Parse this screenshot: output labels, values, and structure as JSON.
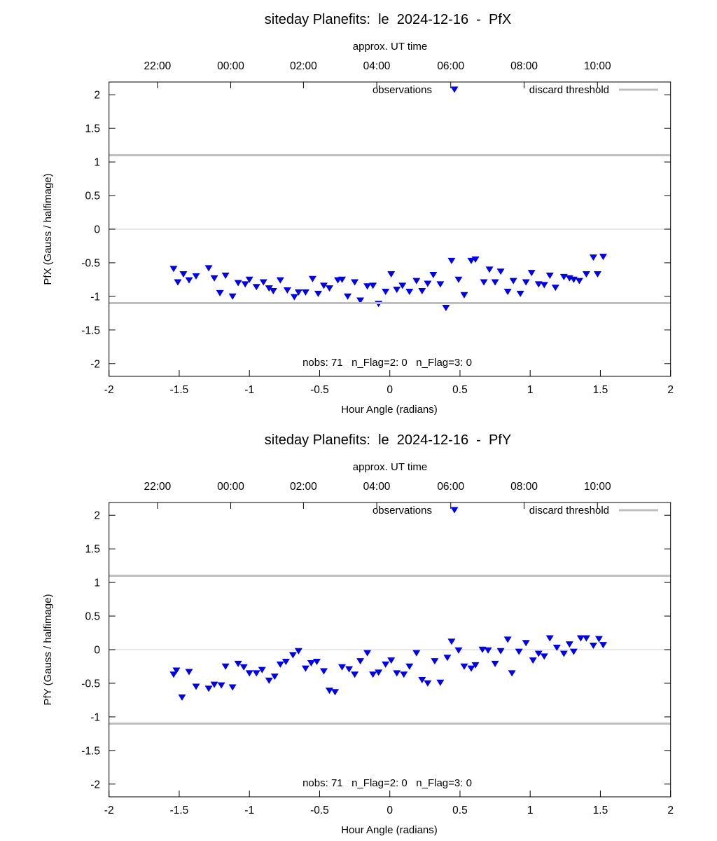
{
  "colors": {
    "marker_blue": "#0000e6",
    "threshold_gray": "#bfbfbf",
    "zero_gray": "#d9d9d9",
    "axis_black": "#000000",
    "background": "#ffffff"
  },
  "chart_data": [
    {
      "type": "scatter",
      "title": "siteday Planefits:  le  2024-12-16  -  PfX",
      "top_axis": {
        "label": "approx. UT time",
        "ticks": [
          {
            "label": "22:00",
            "x": -1.655
          },
          {
            "label": "00:00",
            "x": -1.133
          },
          {
            "label": "02:00",
            "x": -0.615
          },
          {
            "label": "04:00",
            "x": -0.093
          },
          {
            "label": "06:00",
            "x": 0.434
          },
          {
            "label": "08:00",
            "x": 0.957
          },
          {
            "label": "10:00",
            "x": 1.479
          }
        ]
      },
      "xlabel": "Hour Angle (radians)",
      "ylabel": "PfX (Gauss / halfimage)",
      "xlim": [
        -2,
        2
      ],
      "ylim": [
        -2.19,
        2.19
      ],
      "x_ticks": [
        {
          "label": "-2",
          "x": -2
        },
        {
          "label": "-1.5",
          "x": -1.5
        },
        {
          "label": "-1",
          "x": -1
        },
        {
          "label": "-0.5",
          "x": -0.5
        },
        {
          "label": "0",
          "x": 0
        },
        {
          "label": "0.5",
          "x": 0.5
        },
        {
          "label": "1",
          "x": 1
        },
        {
          "label": "1.5",
          "x": 1.5
        },
        {
          "label": "2",
          "x": 2
        }
      ],
      "y_ticks": [
        {
          "label": "2",
          "y": 2
        },
        {
          "label": "1.5",
          "y": 1.5
        },
        {
          "label": "1",
          "y": 1
        },
        {
          "label": "0.5",
          "y": 0.5
        },
        {
          "label": "0",
          "y": 0
        },
        {
          "label": "-0.5",
          "y": -0.5
        },
        {
          "label": "-1",
          "y": -1
        },
        {
          "label": "-1.5",
          "y": -1.5
        },
        {
          "label": "-2",
          "y": -2
        }
      ],
      "zero_line": 0,
      "discard_thresholds": [
        1.1,
        -1.1
      ],
      "legend": {
        "observations_label": "observations",
        "threshold_label": "discard threshold"
      },
      "annotation": "nobs: 71   n_Flag=2: 0   n_Flag=3: 0",
      "series": [
        {
          "name": "observations",
          "marker": "triangle-down",
          "points": [
            [
              -1.54,
              -0.59
            ],
            [
              -1.51,
              -0.79
            ],
            [
              -1.47,
              -0.67
            ],
            [
              -1.43,
              -0.76
            ],
            [
              -1.38,
              -0.7
            ],
            [
              -1.29,
              -0.58
            ],
            [
              -1.25,
              -0.73
            ],
            [
              -1.21,
              -0.95
            ],
            [
              -1.17,
              -0.69
            ],
            [
              -1.12,
              -1.0
            ],
            [
              -1.08,
              -0.8
            ],
            [
              -1.03,
              -0.82
            ],
            [
              -1.0,
              -0.75
            ],
            [
              -0.95,
              -0.86
            ],
            [
              -0.9,
              -0.79
            ],
            [
              -0.86,
              -0.88
            ],
            [
              -0.83,
              -0.92
            ],
            [
              -0.78,
              -0.76
            ],
            [
              -0.73,
              -0.91
            ],
            [
              -0.68,
              -1.01
            ],
            [
              -0.65,
              -0.94
            ],
            [
              -0.6,
              -0.94
            ],
            [
              -0.55,
              -0.74
            ],
            [
              -0.51,
              -0.96
            ],
            [
              -0.47,
              -0.84
            ],
            [
              -0.43,
              -0.88
            ],
            [
              -0.37,
              -0.76
            ],
            [
              -0.34,
              -0.75
            ],
            [
              -0.3,
              -1.0
            ],
            [
              -0.25,
              -0.79
            ],
            [
              -0.21,
              -1.06
            ],
            [
              -0.16,
              -0.85
            ],
            [
              -0.12,
              -0.84
            ],
            [
              -0.08,
              -1.11
            ],
            [
              -0.03,
              -0.93
            ],
            [
              0.01,
              -0.67
            ],
            [
              0.05,
              -0.9
            ],
            [
              0.09,
              -0.84
            ],
            [
              0.14,
              -0.93
            ],
            [
              0.19,
              -0.77
            ],
            [
              0.23,
              -0.92
            ],
            [
              0.27,
              -0.81
            ],
            [
              0.31,
              -0.68
            ],
            [
              0.36,
              -0.82
            ],
            [
              0.4,
              -1.17
            ],
            [
              0.44,
              -0.47
            ],
            [
              0.49,
              -0.75
            ],
            [
              0.53,
              -0.98
            ],
            [
              0.58,
              -0.47
            ],
            [
              0.61,
              -0.45
            ],
            [
              0.67,
              -0.79
            ],
            [
              0.71,
              -0.6
            ],
            [
              0.75,
              -0.79
            ],
            [
              0.79,
              -0.63
            ],
            [
              0.84,
              -0.93
            ],
            [
              0.88,
              -0.77
            ],
            [
              0.93,
              -0.96
            ],
            [
              0.97,
              -0.79
            ],
            [
              1.01,
              -0.65
            ],
            [
              1.06,
              -0.82
            ],
            [
              1.1,
              -0.83
            ],
            [
              1.14,
              -0.69
            ],
            [
              1.18,
              -0.87
            ],
            [
              1.24,
              -0.71
            ],
            [
              1.28,
              -0.73
            ],
            [
              1.31,
              -0.75
            ],
            [
              1.35,
              -0.77
            ],
            [
              1.4,
              -0.67
            ],
            [
              1.45,
              -0.42
            ],
            [
              1.48,
              -0.67
            ],
            [
              1.52,
              -0.41
            ]
          ]
        }
      ]
    },
    {
      "type": "scatter",
      "title": "siteday Planefits:  le  2024-12-16  -  PfY",
      "top_axis": {
        "label": "approx. UT time",
        "ticks": [
          {
            "label": "22:00",
            "x": -1.655
          },
          {
            "label": "00:00",
            "x": -1.133
          },
          {
            "label": "02:00",
            "x": -0.615
          },
          {
            "label": "04:00",
            "x": -0.093
          },
          {
            "label": "06:00",
            "x": 0.434
          },
          {
            "label": "08:00",
            "x": 0.957
          },
          {
            "label": "10:00",
            "x": 1.479
          }
        ]
      },
      "xlabel": "Hour Angle (radians)",
      "ylabel": "PfY (Gauss / halfimage)",
      "xlim": [
        -2,
        2
      ],
      "ylim": [
        -2.19,
        2.19
      ],
      "x_ticks": [
        {
          "label": "-2",
          "x": -2
        },
        {
          "label": "-1.5",
          "x": -1.5
        },
        {
          "label": "-1",
          "x": -1
        },
        {
          "label": "-0.5",
          "x": -0.5
        },
        {
          "label": "0",
          "x": 0
        },
        {
          "label": "0.5",
          "x": 0.5
        },
        {
          "label": "1",
          "x": 1
        },
        {
          "label": "1.5",
          "x": 1.5
        },
        {
          "label": "2",
          "x": 2
        }
      ],
      "y_ticks": [
        {
          "label": "2",
          "y": 2
        },
        {
          "label": "1.5",
          "y": 1.5
        },
        {
          "label": "1",
          "y": 1
        },
        {
          "label": "0.5",
          "y": 0.5
        },
        {
          "label": "0",
          "y": 0
        },
        {
          "label": "-0.5",
          "y": -0.5
        },
        {
          "label": "-1",
          "y": -1
        },
        {
          "label": "-1.5",
          "y": -1.5
        },
        {
          "label": "-2",
          "y": -2
        }
      ],
      "zero_line": 0,
      "discard_thresholds": [
        1.1,
        -1.1
      ],
      "legend": {
        "observations_label": "observations",
        "threshold_label": "discard threshold"
      },
      "annotation": "nobs: 71   n_Flag=2: 0   n_Flag=3: 0",
      "series": [
        {
          "name": "observations",
          "marker": "triangle-down",
          "points": [
            [
              -1.54,
              -0.37
            ],
            [
              -1.52,
              -0.31
            ],
            [
              -1.48,
              -0.71
            ],
            [
              -1.43,
              -0.33
            ],
            [
              -1.38,
              -0.55
            ],
            [
              -1.29,
              -0.58
            ],
            [
              -1.25,
              -0.52
            ],
            [
              -1.2,
              -0.53
            ],
            [
              -1.17,
              -0.25
            ],
            [
              -1.12,
              -0.56
            ],
            [
              -1.08,
              -0.21
            ],
            [
              -1.04,
              -0.26
            ],
            [
              -1.0,
              -0.35
            ],
            [
              -0.95,
              -0.35
            ],
            [
              -0.91,
              -0.3
            ],
            [
              -0.86,
              -0.46
            ],
            [
              -0.82,
              -0.4
            ],
            [
              -0.78,
              -0.22
            ],
            [
              -0.74,
              -0.18
            ],
            [
              -0.69,
              -0.08
            ],
            [
              -0.65,
              -0.02
            ],
            [
              -0.6,
              -0.28
            ],
            [
              -0.56,
              -0.2
            ],
            [
              -0.52,
              -0.18
            ],
            [
              -0.47,
              -0.32
            ],
            [
              -0.43,
              -0.61
            ],
            [
              -0.39,
              -0.63
            ],
            [
              -0.34,
              -0.26
            ],
            [
              -0.29,
              -0.29
            ],
            [
              -0.25,
              -0.37
            ],
            [
              -0.21,
              -0.17
            ],
            [
              -0.16,
              -0.05
            ],
            [
              -0.12,
              -0.37
            ],
            [
              -0.08,
              -0.34
            ],
            [
              -0.03,
              -0.22
            ],
            [
              0.01,
              -0.16
            ],
            [
              0.05,
              -0.35
            ],
            [
              0.1,
              -0.37
            ],
            [
              0.14,
              -0.25
            ],
            [
              0.19,
              -0.05
            ],
            [
              0.23,
              -0.45
            ],
            [
              0.27,
              -0.5
            ],
            [
              0.32,
              -0.17
            ],
            [
              0.36,
              -0.49
            ],
            [
              0.41,
              -0.12
            ],
            [
              0.44,
              0.12
            ],
            [
              0.49,
              -0.01
            ],
            [
              0.53,
              -0.25
            ],
            [
              0.58,
              -0.28
            ],
            [
              0.61,
              -0.23
            ],
            [
              0.66,
              0.0
            ],
            [
              0.7,
              -0.01
            ],
            [
              0.75,
              -0.21
            ],
            [
              0.79,
              -0.02
            ],
            [
              0.84,
              0.15
            ],
            [
              0.87,
              -0.35
            ],
            [
              0.92,
              -0.03
            ],
            [
              0.97,
              0.1
            ],
            [
              1.02,
              -0.16
            ],
            [
              1.06,
              -0.06
            ],
            [
              1.1,
              -0.1
            ],
            [
              1.14,
              0.17
            ],
            [
              1.19,
              0.03
            ],
            [
              1.24,
              -0.06
            ],
            [
              1.28,
              0.08
            ],
            [
              1.31,
              -0.03
            ],
            [
              1.36,
              0.17
            ],
            [
              1.4,
              0.17
            ],
            [
              1.45,
              0.06
            ],
            [
              1.49,
              0.16
            ],
            [
              1.52,
              0.07
            ]
          ]
        }
      ]
    }
  ]
}
